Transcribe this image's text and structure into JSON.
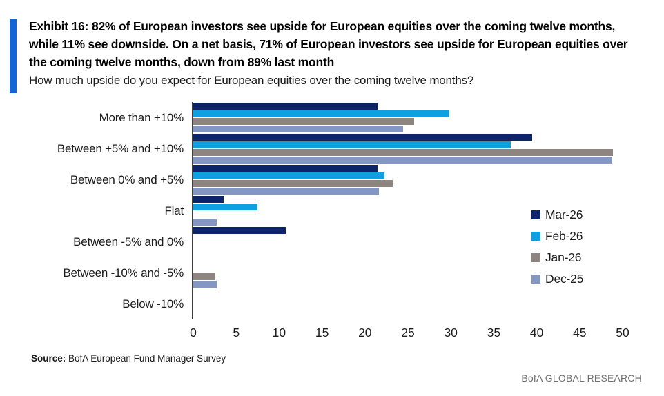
{
  "header": {
    "exhibit_title": "Exhibit 16: 82% of European investors see upside for European equities over the coming twelve months, while 11% see downside. On a net basis, 71% of European investors see upside for European equities over the coming twelve months, down from 89% last month",
    "subtitle": "How much upside do you expect for European equities over the coming twelve months?",
    "accent_color": "#1565d6"
  },
  "chart_data": {
    "type": "bar",
    "orientation": "horizontal",
    "title": "How much upside do you expect for European equities over the coming twelve months?",
    "categories": [
      "More than +10%",
      "Between +5% and +10%",
      "Between 0% and +5%",
      "Flat",
      "Between -5% and 0%",
      "Between -10% and -5%",
      "Below -10%"
    ],
    "series": [
      {
        "name": "Mar-26",
        "color": "#0d2468",
        "values": [
          21.5,
          39.5,
          21.5,
          3.5,
          10.8,
          0,
          0
        ]
      },
      {
        "name": "Feb-26",
        "color": "#0fa0e2",
        "values": [
          29.8,
          37.0,
          22.3,
          7.5,
          0,
          0,
          0
        ]
      },
      {
        "name": "Jan-26",
        "color": "#8e8480",
        "values": [
          25.7,
          48.9,
          23.2,
          0,
          0,
          2.6,
          0
        ]
      },
      {
        "name": "Dec-25",
        "color": "#8496c2",
        "values": [
          24.4,
          48.8,
          21.6,
          2.7,
          0,
          2.7,
          0
        ]
      }
    ],
    "xlabel": "",
    "ylabel": "",
    "xlim": [
      0,
      50
    ],
    "x_ticks": [
      0,
      5,
      10,
      15,
      20,
      25,
      30,
      35,
      40,
      45,
      50
    ],
    "grid": false,
    "legend_position": "right"
  },
  "footer": {
    "source_label": "Source:",
    "source_text": " BofA European Fund Manager Survey",
    "brand": "BofA GLOBAL RESEARCH"
  }
}
